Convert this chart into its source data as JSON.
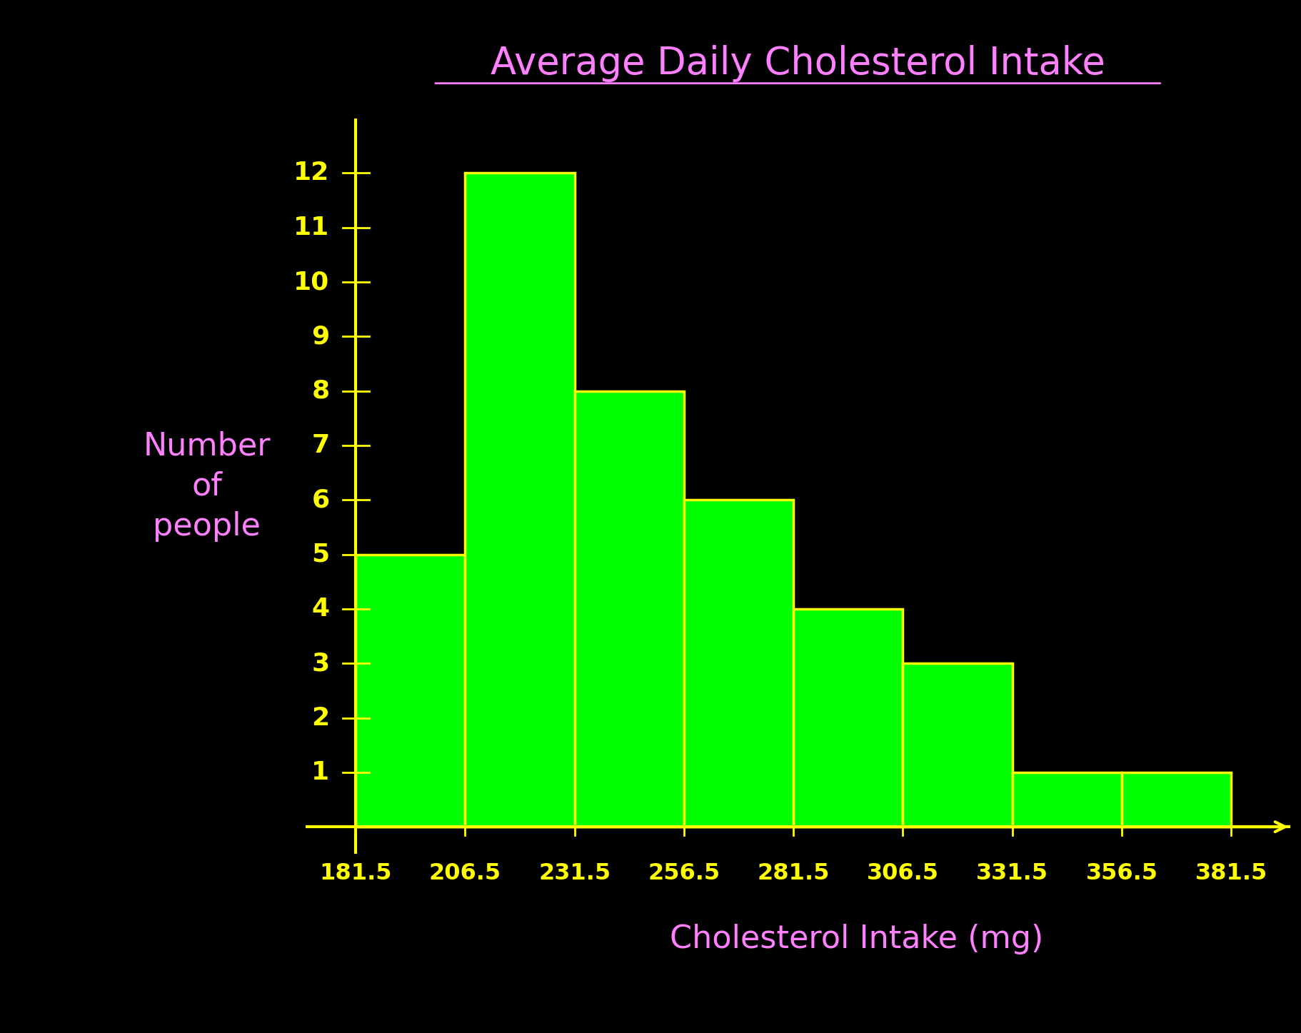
{
  "title": "Average Daily Cholesterol Intake",
  "xlabel": "Cholesterol Intake (mg)",
  "ylabel": "Number\nof\npeople",
  "background_color": "#000000",
  "bar_color": "#00ff00",
  "bar_edge_color": "#ffff00",
  "axis_color": "#ffff00",
  "title_color": "#ff80ff",
  "xlabel_color": "#ff80ff",
  "ylabel_color": "#ff80ff",
  "tick_label_color": "#ffff00",
  "grid_color": "#00ffcc",
  "bin_edges": [
    181.5,
    206.5,
    231.5,
    256.5,
    281.5,
    306.5,
    331.5,
    356.5,
    381.5
  ],
  "frequencies": [
    5,
    12,
    8,
    6,
    4,
    3,
    1,
    1
  ],
  "xtick_labels": [
    "181.5",
    "206.5",
    "231.5",
    "256.5",
    "281.5",
    "306.5",
    "331.5",
    "356.5",
    "381.5"
  ],
  "ytick_values": [
    1,
    2,
    3,
    4,
    5,
    6,
    7,
    8,
    9,
    10,
    11,
    12
  ],
  "ylim": [
    0,
    13
  ],
  "xlim": [
    170,
    395
  ]
}
